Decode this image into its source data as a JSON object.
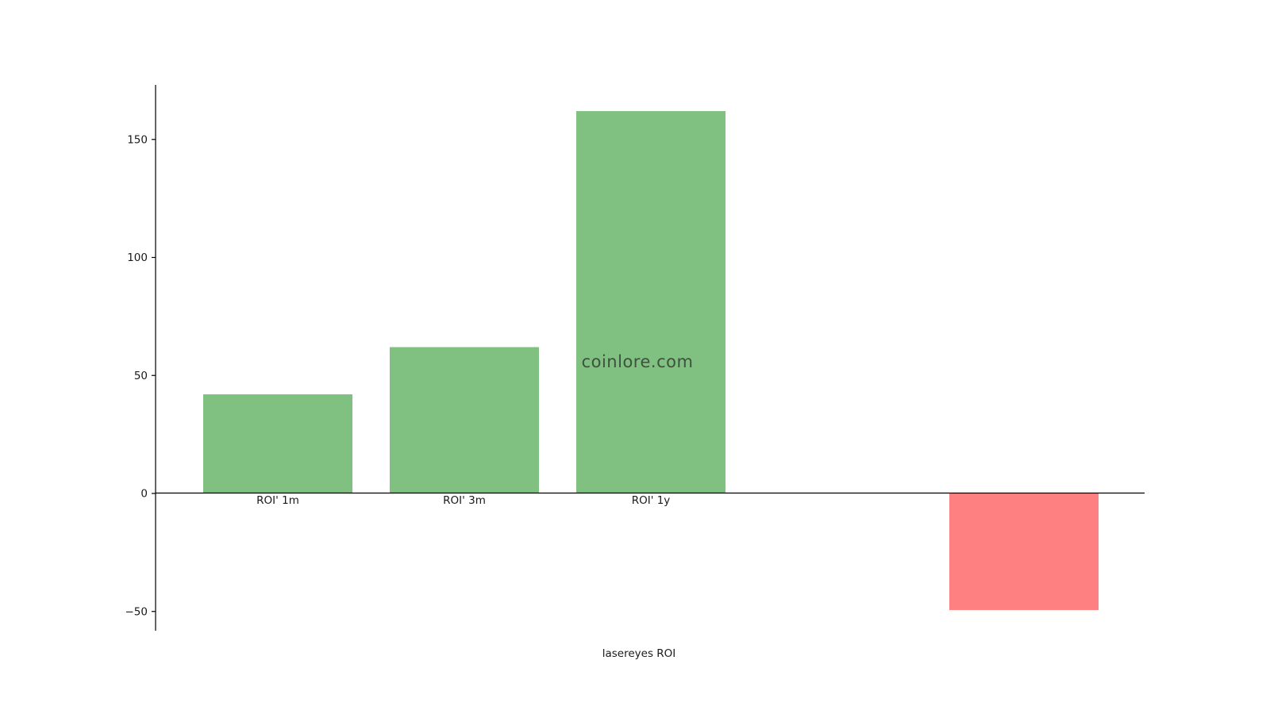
{
  "page": {
    "background": "#ffffff"
  },
  "chart_data": {
    "type": "bar",
    "title": "",
    "xlabel": "lasereyes ROI",
    "ylabel": "",
    "categories": [
      "ROI' 1m",
      "ROI' 3m",
      "ROI' 1y",
      "",
      ""
    ],
    "values": [
      42,
      62,
      162,
      0,
      -49.4
    ],
    "yticks": [
      150,
      100,
      50,
      0,
      -50
    ],
    "ytick_labels": [
      "150",
      "100",
      "50",
      "0",
      "−50"
    ],
    "ylim": [
      -58.5,
      173
    ],
    "grid": false,
    "legend": false,
    "watermark": "coinlore.com",
    "colors": {
      "positive": "#80c080",
      "negative": "#ff8080",
      "axis": "#000000",
      "text": "#1a1a1a"
    }
  }
}
